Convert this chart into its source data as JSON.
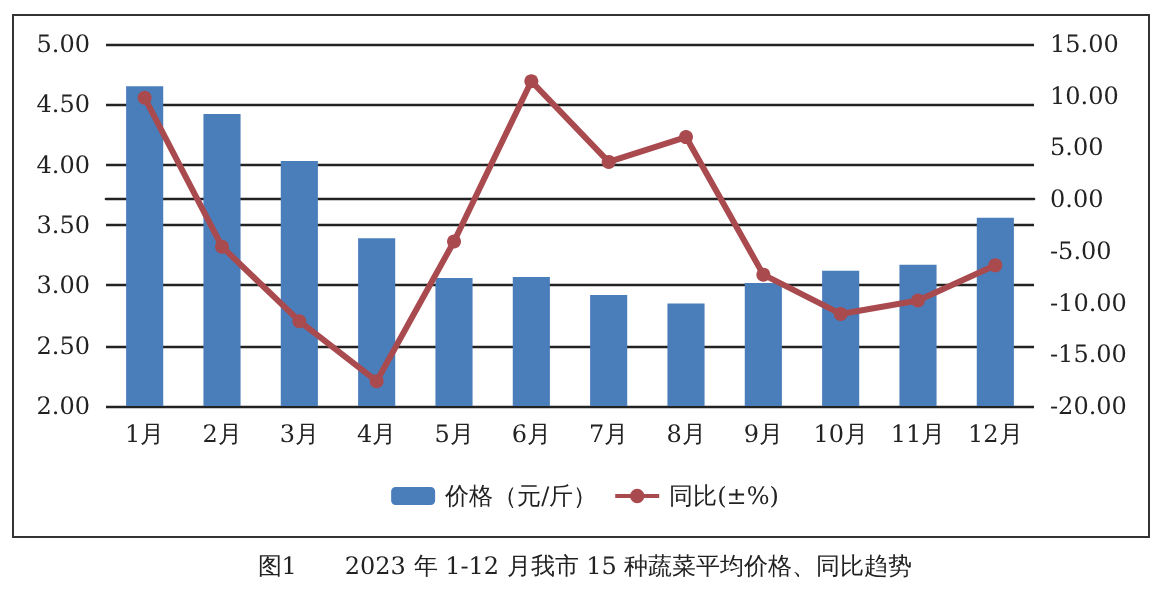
{
  "chart_data": {
    "type": "bar",
    "title": "图1　　2023 年 1-12 月我市 15 种蔬菜平均价格、同比趋势",
    "categories": [
      "1月",
      "2月",
      "3月",
      "4月",
      "5月",
      "6月",
      "7月",
      "8月",
      "9月",
      "10月",
      "11月",
      "12月"
    ],
    "series": [
      {
        "name": "价格（元/斤）",
        "color": "#4a7ebb",
        "values": [
          4.65,
          4.42,
          4.03,
          3.39,
          3.06,
          3.07,
          2.92,
          2.85,
          3.02,
          3.12,
          3.17,
          3.56
        ]
      },
      {
        "name": "同比(±%)",
        "type": "line",
        "axis": "y2",
        "color": "#a94a4f",
        "values": [
          9.8,
          -4.6,
          -11.8,
          -17.6,
          -4.1,
          11.4,
          3.6,
          6.0,
          -7.3,
          -11.1,
          -9.8,
          -6.4
        ]
      }
    ],
    "ylim": [
      2,
      5
    ],
    "yticks": [
      {
        "value": 2,
        "label": "2.00"
      },
      {
        "value": 2.5,
        "label": "2.50"
      },
      {
        "value": 3,
        "label": "3.00"
      },
      {
        "value": 3.5,
        "label": "3.50"
      },
      {
        "value": 4,
        "label": "4.00"
      },
      {
        "value": 4.5,
        "label": "4.50"
      },
      {
        "value": 5,
        "label": "5.00"
      }
    ],
    "y2lim": [
      -20,
      15
    ],
    "y2ticks": [
      {
        "value": -20,
        "label": "-20.00"
      },
      {
        "value": -15,
        "label": "-15.00"
      },
      {
        "value": -10,
        "label": "-10.00"
      },
      {
        "value": -5,
        "label": "-5.00"
      },
      {
        "value": 0,
        "label": "0.00"
      },
      {
        "value": 5,
        "label": "5.00"
      },
      {
        "value": 10,
        "label": "10.00"
      },
      {
        "value": 15,
        "label": "15.00"
      }
    ],
    "grid": true,
    "legend": "bottom",
    "marker": "circle"
  }
}
